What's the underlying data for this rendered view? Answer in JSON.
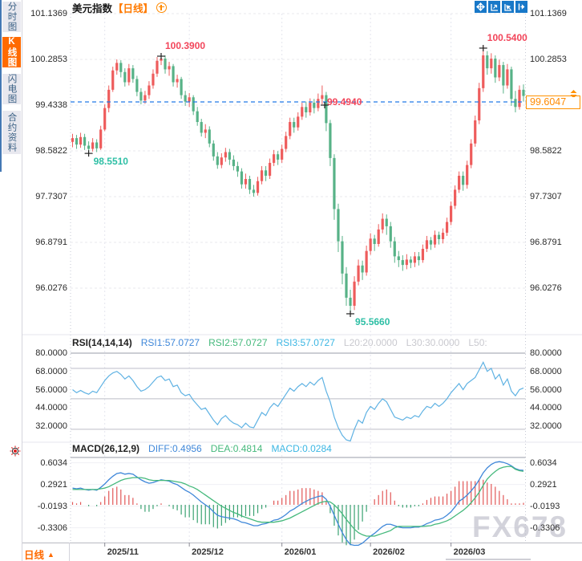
{
  "header": {
    "symbol": "美元指数",
    "period": "【日线】"
  },
  "toolbar": {
    "icons": [
      "move-icon",
      "axis-zoom-icon",
      "axis-scale-icon",
      "pan-right-icon"
    ]
  },
  "sidebar": {
    "tabs": [
      {
        "label": "分时图",
        "active": false
      },
      {
        "label": "K线图",
        "active": true
      },
      {
        "label": "闪电图",
        "active": false
      },
      {
        "label": "合约资料",
        "active": false
      }
    ]
  },
  "price_box": {
    "value": "99.6047",
    "color": "#ff8a00"
  },
  "bottom_bar": {
    "timeframe": "日线"
  },
  "watermark": "FX678",
  "colors": {
    "accent_orange": "#ff6a00",
    "toolbar_blue": "#1878c8"
  },
  "chart_data": [
    {
      "type": "candlestick",
      "title": "美元指数 日线",
      "ylim": [
        95.192,
        101.1369
      ],
      "y_ticks": [
        "101.1369",
        "100.2853",
        "99.4338",
        "98.5822",
        "97.7307",
        "96.8791",
        "96.0276"
      ],
      "months": [
        {
          "label": "2025/11",
          "idx": 8
        },
        {
          "label": "2025/12",
          "idx": 29
        },
        {
          "label": "2026/01",
          "idx": 52
        },
        {
          "label": "2026/02",
          "idx": 74
        },
        {
          "label": "2026/03",
          "idx": 94
        }
      ],
      "colors": {
        "up": "#ee5c5c",
        "down": "#57b287",
        "hline": "#2079e8",
        "high_label": "#f2455a",
        "low_label": "#2ebfa5"
      },
      "annotations": [
        {
          "kind": "high",
          "text": "100.3900",
          "idx": 22,
          "price": 100.39
        },
        {
          "kind": "high",
          "text": "100.5400",
          "idx": 102,
          "price": 100.54
        },
        {
          "kind": "low",
          "text": "98.5510",
          "idx": 4,
          "price": 98.551
        },
        {
          "kind": "low",
          "text": "95.5660",
          "idx": 69,
          "price": 95.566
        },
        {
          "kind": "hline",
          "text": "99.4940",
          "price": 99.494,
          "label_x": 408
        }
      ],
      "candles": [
        [
          98.75,
          98.82,
          98.65,
          98.9
        ],
        [
          98.82,
          98.7,
          98.62,
          98.88
        ],
        [
          98.7,
          98.84,
          98.64,
          98.92
        ],
        [
          98.84,
          98.68,
          98.6,
          98.9
        ],
        [
          98.68,
          98.62,
          98.551,
          98.76
        ],
        [
          98.62,
          98.74,
          98.57,
          98.82
        ],
        [
          98.74,
          98.63,
          98.56,
          98.8
        ],
        [
          98.63,
          98.98,
          98.6,
          99.05
        ],
        [
          98.98,
          99.38,
          98.95,
          99.45
        ],
        [
          99.38,
          99.72,
          99.3,
          99.8
        ],
        [
          99.72,
          100.08,
          99.68,
          100.15
        ],
        [
          100.08,
          100.22,
          100.0,
          100.285
        ],
        [
          100.22,
          100.05,
          99.95,
          100.27
        ],
        [
          100.05,
          99.86,
          99.78,
          100.12
        ],
        [
          99.86,
          100.12,
          99.8,
          100.2
        ],
        [
          100.12,
          99.92,
          99.85,
          100.18
        ],
        [
          99.92,
          99.68,
          99.6,
          99.98
        ],
        [
          99.68,
          99.52,
          99.45,
          99.75
        ],
        [
          99.52,
          99.62,
          99.46,
          99.7
        ],
        [
          99.62,
          99.8,
          99.55,
          99.88
        ],
        [
          99.8,
          100.02,
          99.74,
          100.1
        ],
        [
          100.02,
          100.26,
          99.96,
          100.33
        ],
        [
          100.26,
          100.3,
          100.18,
          100.39
        ],
        [
          100.3,
          100.1,
          100.02,
          100.36
        ],
        [
          100.1,
          100.16,
          99.98,
          100.24
        ],
        [
          100.16,
          99.86,
          99.78,
          100.2
        ],
        [
          99.86,
          99.92,
          99.76,
          100.0
        ],
        [
          99.92,
          99.62,
          99.55,
          99.96
        ],
        [
          99.62,
          99.5,
          99.42,
          99.7
        ],
        [
          99.5,
          99.58,
          99.4,
          99.66
        ],
        [
          99.58,
          99.32,
          99.25,
          99.62
        ],
        [
          99.32,
          99.12,
          99.05,
          99.4
        ],
        [
          99.12,
          98.92,
          98.85,
          99.18
        ],
        [
          98.92,
          98.98,
          98.82,
          99.08
        ],
        [
          98.98,
          98.72,
          98.65,
          99.04
        ],
        [
          98.72,
          98.48,
          98.4,
          98.78
        ],
        [
          98.48,
          98.32,
          98.25,
          98.56
        ],
        [
          98.32,
          98.46,
          98.26,
          98.54
        ],
        [
          98.46,
          98.56,
          98.38,
          98.64
        ],
        [
          98.56,
          98.42,
          98.32,
          98.62
        ],
        [
          98.42,
          98.3,
          98.22,
          98.5
        ],
        [
          98.3,
          98.2,
          98.1,
          98.38
        ],
        [
          98.2,
          97.96,
          97.88,
          98.26
        ],
        [
          97.96,
          98.06,
          97.88,
          98.16
        ],
        [
          98.06,
          97.86,
          97.78,
          98.12
        ],
        [
          97.86,
          97.8,
          97.731,
          97.95
        ],
        [
          97.8,
          98.02,
          97.75,
          98.1
        ],
        [
          98.02,
          98.22,
          97.96,
          98.3
        ],
        [
          98.22,
          98.12,
          98.02,
          98.3
        ],
        [
          98.12,
          98.36,
          98.06,
          98.44
        ],
        [
          98.36,
          98.52,
          98.3,
          98.6
        ],
        [
          98.52,
          98.42,
          98.32,
          98.58
        ],
        [
          98.42,
          98.62,
          98.36,
          98.7
        ],
        [
          98.62,
          98.86,
          98.56,
          98.94
        ],
        [
          98.86,
          99.12,
          98.8,
          99.2
        ],
        [
          99.12,
          99.02,
          98.92,
          99.2
        ],
        [
          99.02,
          99.22,
          98.96,
          99.3
        ],
        [
          99.22,
          99.4,
          99.16,
          99.48
        ],
        [
          99.4,
          99.3,
          99.2,
          99.5
        ],
        [
          99.3,
          99.48,
          99.24,
          99.56
        ],
        [
          99.48,
          99.38,
          99.28,
          99.55
        ],
        [
          99.38,
          99.55,
          99.32,
          99.65
        ],
        [
          99.55,
          99.62,
          99.45,
          99.8
        ],
        [
          99.62,
          99.1,
          98.95,
          99.68
        ],
        [
          99.1,
          98.45,
          98.3,
          99.16
        ],
        [
          98.45,
          97.5,
          97.3,
          98.52
        ],
        [
          97.5,
          96.9,
          96.7,
          97.6
        ],
        [
          96.9,
          96.3,
          96.1,
          97.0
        ],
        [
          96.3,
          95.85,
          95.7,
          96.42
        ],
        [
          95.85,
          95.7,
          95.566,
          96.0
        ],
        [
          95.7,
          96.15,
          95.62,
          96.25
        ],
        [
          96.15,
          96.45,
          96.08,
          96.56
        ],
        [
          96.45,
          96.32,
          96.18,
          96.54
        ],
        [
          96.32,
          96.72,
          96.26,
          96.82
        ],
        [
          96.72,
          96.95,
          96.65,
          97.05
        ],
        [
          96.95,
          96.85,
          96.72,
          97.02
        ],
        [
          96.85,
          97.12,
          96.8,
          97.22
        ],
        [
          97.12,
          97.32,
          97.05,
          97.42
        ],
        [
          97.32,
          97.18,
          97.02,
          97.4
        ],
        [
          97.18,
          96.9,
          96.78,
          97.26
        ],
        [
          96.9,
          96.62,
          96.5,
          96.98
        ],
        [
          96.62,
          96.55,
          96.42,
          96.72
        ],
        [
          96.55,
          96.46,
          96.35,
          96.64
        ],
        [
          96.46,
          96.56,
          96.38,
          96.66
        ],
        [
          96.56,
          96.5,
          96.4,
          96.62
        ],
        [
          96.5,
          96.62,
          96.42,
          96.7
        ],
        [
          96.62,
          96.55,
          96.45,
          96.7
        ],
        [
          96.55,
          96.76,
          96.5,
          96.84
        ],
        [
          96.76,
          96.92,
          96.7,
          97.0
        ],
        [
          96.92,
          96.84,
          96.74,
          96.98
        ],
        [
          96.84,
          97.02,
          96.78,
          97.1
        ],
        [
          97.02,
          96.94,
          96.84,
          97.08
        ],
        [
          96.94,
          97.06,
          96.86,
          97.14
        ],
        [
          97.06,
          97.26,
          97.0,
          97.34
        ],
        [
          97.26,
          97.56,
          97.2,
          97.64
        ],
        [
          97.56,
          97.86,
          97.5,
          97.94
        ],
        [
          97.86,
          98.12,
          97.8,
          98.2
        ],
        [
          98.12,
          97.95,
          97.84,
          98.2
        ],
        [
          97.95,
          98.32,
          97.88,
          98.4
        ],
        [
          98.32,
          98.72,
          98.26,
          98.8
        ],
        [
          98.72,
          99.15,
          98.66,
          99.24
        ],
        [
          99.15,
          99.75,
          99.08,
          99.85
        ],
        [
          99.75,
          100.36,
          99.68,
          100.54
        ],
        [
          100.36,
          100.12,
          100.0,
          100.44
        ],
        [
          100.12,
          100.3,
          100.02,
          100.4
        ],
        [
          100.3,
          99.95,
          99.85,
          100.36
        ],
        [
          99.95,
          100.18,
          99.88,
          100.28
        ],
        [
          100.18,
          99.8,
          99.65,
          100.24
        ],
        [
          99.8,
          100.1,
          99.74,
          100.2
        ],
        [
          100.1,
          99.55,
          99.42,
          100.15
        ],
        [
          99.55,
          99.4,
          99.3,
          99.7
        ],
        [
          99.4,
          99.72,
          99.35,
          99.8
        ],
        [
          99.72,
          99.6047,
          99.5,
          99.82
        ]
      ]
    },
    {
      "type": "line",
      "name": "RSI",
      "ylim": [
        22.0,
        82.1
      ],
      "y_ticks": [
        "80.0000",
        "68.0000",
        "56.0000",
        "44.0000",
        "32.0000"
      ],
      "levels": [
        70,
        50,
        30
      ],
      "colors": {
        "line": "#5fb2e3",
        "grid": "#bcbec8"
      },
      "legend": [
        {
          "text": "RSI(14,14,14)",
          "color": "#222222"
        },
        {
          "text": "RSI1:57.0727",
          "color": "#3f87d9"
        },
        {
          "text": "RSI2:57.0727",
          "color": "#45b97c"
        },
        {
          "text": "RSI3:57.0727",
          "color": "#3bb6e3"
        },
        {
          "text": "L20:20.0000",
          "color": "#c9c9cf"
        },
        {
          "text": "L30:30.0000",
          "color": "#c9c9cf"
        },
        {
          "text": "L50:",
          "color": "#c9c9cf"
        }
      ],
      "values": [
        56,
        54,
        55.5,
        54,
        53,
        55,
        54,
        58,
        62,
        65,
        67,
        68,
        66,
        63,
        65,
        62,
        58,
        55,
        56,
        58,
        61,
        64,
        65,
        62,
        63,
        58,
        59,
        54,
        52,
        53,
        49,
        46,
        43,
        44,
        40,
        36,
        33,
        37,
        39,
        36,
        34,
        33,
        31,
        34,
        31.5,
        31,
        36,
        41,
        39,
        44,
        47,
        45,
        49,
        53,
        57,
        55,
        58,
        60,
        58,
        61,
        59,
        62,
        64,
        55,
        48,
        38,
        31,
        26,
        23,
        22,
        30,
        36,
        34,
        41,
        45,
        43,
        47,
        50,
        48,
        43,
        38,
        37,
        36,
        38,
        37,
        39,
        38,
        42,
        45,
        44,
        47,
        45,
        47,
        50,
        54,
        57,
        60,
        56,
        60,
        62,
        64,
        69,
        74,
        68,
        70,
        63,
        66,
        59,
        63,
        55,
        52,
        56,
        57.07
      ]
    },
    {
      "type": "macd",
      "name": "MACD",
      "ylim": [
        -0.588,
        0.68
      ],
      "y_ticks": [
        "0.6034",
        "0.2921",
        "-0.0193",
        "-0.3306"
      ],
      "colors": {
        "diff": "#3f87d9",
        "dea": "#45b97c",
        "hist_up": "#e25757",
        "hist_down": "#3aa271"
      },
      "legend": [
        {
          "text": "MACD(26,12,9)",
          "color": "#222222"
        },
        {
          "text": "DIFF:0.4956",
          "color": "#3f87d9"
        },
        {
          "text": "DEA:0.4814",
          "color": "#45b97c"
        },
        {
          "text": "MACD:0.0284",
          "color": "#3bb6e3"
        }
      ],
      "diff": [
        0.24,
        0.23,
        0.24,
        0.22,
        0.21,
        0.22,
        0.21,
        0.25,
        0.3,
        0.36,
        0.41,
        0.45,
        0.46,
        0.44,
        0.45,
        0.44,
        0.4,
        0.36,
        0.33,
        0.31,
        0.32,
        0.34,
        0.36,
        0.35,
        0.34,
        0.31,
        0.29,
        0.25,
        0.21,
        0.18,
        0.14,
        0.09,
        0.04,
        0.0,
        -0.04,
        -0.1,
        -0.15,
        -0.17,
        -0.18,
        -0.19,
        -0.2,
        -0.22,
        -0.25,
        -0.26,
        -0.28,
        -0.3,
        -0.3,
        -0.28,
        -0.27,
        -0.25,
        -0.22,
        -0.21,
        -0.18,
        -0.14,
        -0.09,
        -0.06,
        -0.02,
        0.02,
        0.05,
        0.08,
        0.1,
        0.12,
        0.13,
        0.08,
        -0.02,
        -0.15,
        -0.28,
        -0.4,
        -0.5,
        -0.57,
        -0.6,
        -0.58,
        -0.55,
        -0.5,
        -0.45,
        -0.41,
        -0.36,
        -0.31,
        -0.28,
        -0.28,
        -0.3,
        -0.32,
        -0.33,
        -0.33,
        -0.33,
        -0.32,
        -0.32,
        -0.3,
        -0.27,
        -0.25,
        -0.22,
        -0.21,
        -0.19,
        -0.15,
        -0.1,
        -0.03,
        0.05,
        0.09,
        0.14,
        0.2,
        0.27,
        0.36,
        0.46,
        0.53,
        0.58,
        0.61,
        0.62,
        0.61,
        0.59,
        0.56,
        0.52,
        0.5,
        0.4956
      ],
      "dea": [
        0.22,
        0.22,
        0.22,
        0.22,
        0.22,
        0.22,
        0.22,
        0.23,
        0.24,
        0.26,
        0.29,
        0.32,
        0.35,
        0.37,
        0.38,
        0.39,
        0.39,
        0.39,
        0.38,
        0.36,
        0.35,
        0.35,
        0.35,
        0.35,
        0.35,
        0.34,
        0.33,
        0.32,
        0.3,
        0.27,
        0.25,
        0.22,
        0.18,
        0.14,
        0.1,
        0.06,
        0.02,
        -0.02,
        -0.05,
        -0.08,
        -0.11,
        -0.13,
        -0.16,
        -0.18,
        -0.2,
        -0.22,
        -0.24,
        -0.25,
        -0.25,
        -0.25,
        -0.25,
        -0.24,
        -0.23,
        -0.21,
        -0.19,
        -0.16,
        -0.13,
        -0.1,
        -0.07,
        -0.04,
        -0.01,
        0.02,
        0.04,
        0.05,
        0.04,
        0.0,
        -0.06,
        -0.13,
        -0.21,
        -0.28,
        -0.35,
        -0.4,
        -0.43,
        -0.45,
        -0.45,
        -0.45,
        -0.43,
        -0.41,
        -0.39,
        -0.37,
        -0.33,
        -0.31,
        -0.31,
        -0.31,
        -0.31,
        -0.31,
        -0.31,
        -0.31,
        -0.305,
        -0.3,
        -0.28,
        -0.27,
        -0.25,
        -0.23,
        -0.2,
        -0.16,
        -0.12,
        -0.08,
        -0.03,
        0.03,
        0.1,
        0.18,
        0.28,
        0.37,
        0.43,
        0.48,
        0.52,
        0.54,
        0.55,
        0.55,
        0.51,
        0.49,
        0.4814
      ]
    }
  ]
}
